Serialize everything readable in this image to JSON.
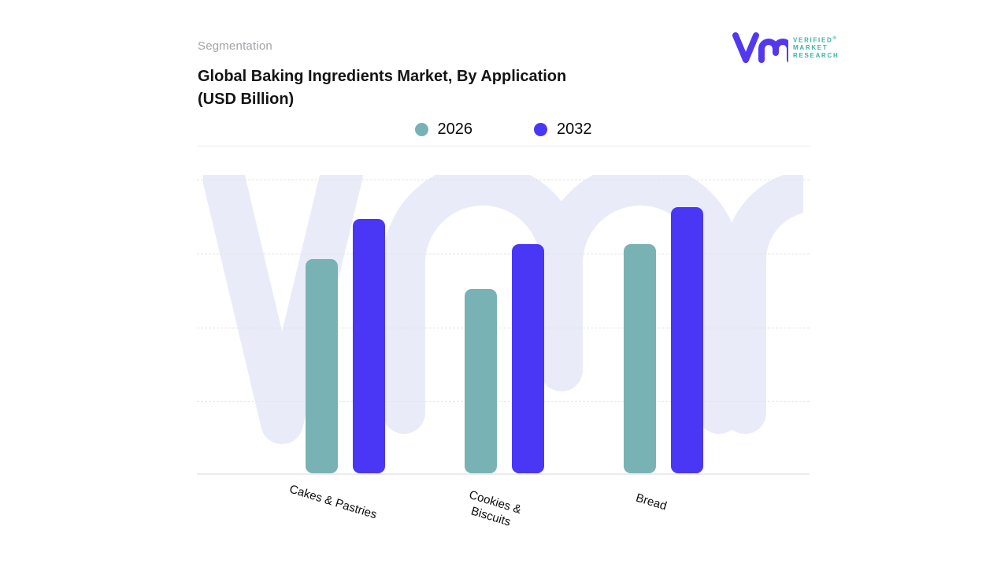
{
  "header": {
    "eyebrow": "Segmentation",
    "title_line1": "Global Baking Ingredients Market, By Application",
    "title_line2": "(USD Billion)"
  },
  "logo": {
    "mark_icon": "vmr-monogram-icon",
    "lines": [
      "VERIFIED",
      "MARKET",
      "RESEARCH"
    ],
    "registered": "®",
    "mark_color": "#5438ef",
    "text_color": "#3cb2a9"
  },
  "chart_data": {
    "type": "bar",
    "title": "Global Baking Ingredients Market, By Application (USD Billion)",
    "categories": [
      "Cakes & Pastries",
      "Cookies & Biscuits",
      "Bread"
    ],
    "category_label_lines": [
      [
        "Cakes & Pastries"
      ],
      [
        "Cookies &",
        "Biscuits"
      ],
      [
        "Bread"
      ]
    ],
    "series": [
      {
        "name": "2026",
        "color": "#79b2b5",
        "values": [
          2.9,
          2.5,
          3.1
        ]
      },
      {
        "name": "2032",
        "color": "#4a37f5",
        "values": [
          3.45,
          3.1,
          3.6
        ]
      }
    ],
    "xlabel": "",
    "ylabel": "",
    "ylim": [
      0,
      4
    ],
    "y_ticks_visible": false,
    "gridlines": {
      "style": "dashed",
      "values": [
        1,
        2,
        3,
        4
      ]
    },
    "legend_position": "top-center",
    "watermark_color": "#e9ecf8",
    "background_color": "#ffffff"
  }
}
